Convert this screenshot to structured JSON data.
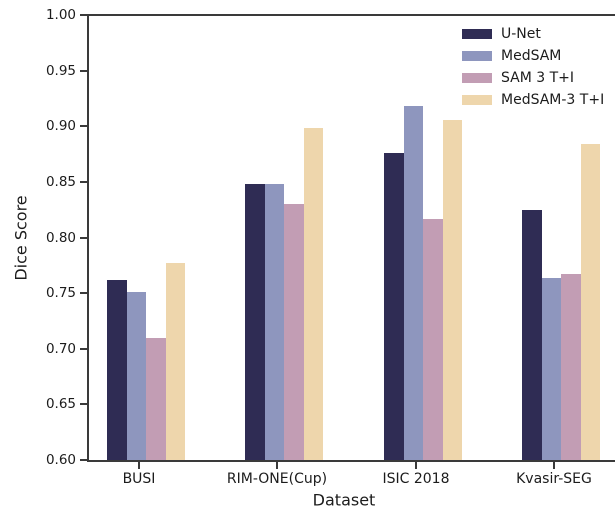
{
  "figure": {
    "background": "#ffffff",
    "axis_color": "#3a3a3a",
    "text_color": "#1c1c1c"
  },
  "chart_data": {
    "type": "bar",
    "title": "",
    "xlabel": "Dataset",
    "ylabel": "Dice Score",
    "categories": [
      "BUSI",
      "RIM-ONE(Cup)",
      "ISIC 2018",
      "Kvasir-SEG"
    ],
    "series": [
      {
        "name": "U-Net",
        "color": "#2F2C54",
        "values": [
          0.762,
          0.848,
          0.876,
          0.825
        ]
      },
      {
        "name": "MedSAM",
        "color": "#8E96BE",
        "values": [
          0.751,
          0.848,
          0.918,
          0.764
        ]
      },
      {
        "name": "SAM 3 T+I",
        "color": "#C29DB4",
        "values": [
          0.71,
          0.83,
          0.817,
          0.767
        ]
      },
      {
        "name": "MedSAM-3 T+I",
        "color": "#EED6AC",
        "values": [
          0.777,
          0.898,
          0.906,
          0.884
        ]
      }
    ],
    "ylim": [
      0.6,
      1.0
    ],
    "ytick_step": 0.05,
    "ytick_labels": [
      "0.60",
      "0.65",
      "0.70",
      "0.75",
      "0.80",
      "0.85",
      "0.90",
      "0.95",
      "1.00"
    ],
    "grid": false,
    "legend_position": "upper right",
    "legend_frame": false
  }
}
